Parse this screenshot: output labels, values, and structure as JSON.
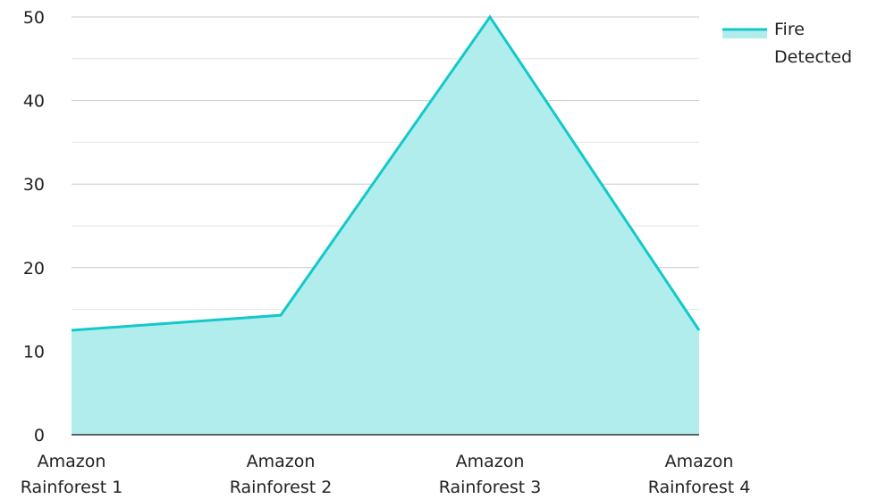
{
  "chart_data": {
    "type": "area",
    "categories": [
      [
        "Amazon",
        "Rainforest 1"
      ],
      [
        "Amazon",
        "Rainforest 2"
      ],
      [
        "Amazon",
        "Rainforest 3"
      ],
      [
        "Amazon",
        "Rainforest 4"
      ]
    ],
    "series": [
      {
        "name": "Fire Detected",
        "values": [
          12.5,
          14.3,
          50,
          12.5
        ]
      }
    ],
    "y_ticks": [
      "0",
      "10",
      "20",
      "30",
      "40",
      "50"
    ],
    "ylim": [
      0,
      50
    ],
    "grid": true,
    "legend": {
      "position": "top-right",
      "lines": [
        "Fire",
        "Detected"
      ]
    },
    "colors": {
      "line": "#12c9c9",
      "fill": "#b2eded",
      "grid_major": "#c8c8c8",
      "grid_minor": "#e4e4e4",
      "axis": "#333333"
    }
  }
}
